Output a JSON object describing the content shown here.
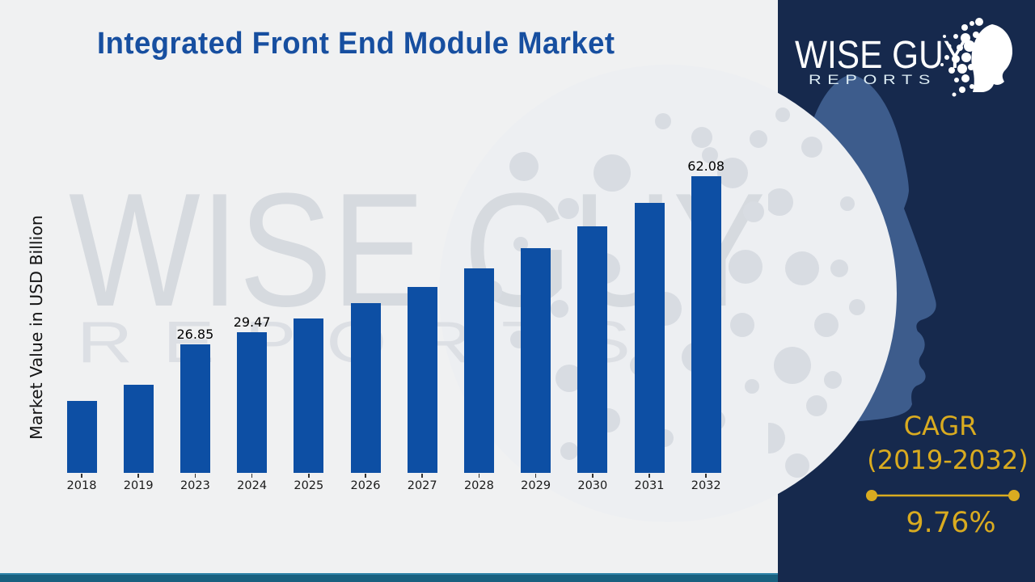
{
  "title": "Integrated Front End Module Market",
  "watermark": {
    "line1": "WISE GUY",
    "line2": "REPORTS"
  },
  "logo": {
    "line1": "WISE GUY",
    "line2": "REPORTS"
  },
  "cagr": {
    "heading": "CAGR",
    "range": "(2019-2032)",
    "value": "9.76%"
  },
  "chart_data": {
    "type": "bar",
    "title": "Integrated Front End Module Market",
    "xlabel": "",
    "ylabel": "Market Value in USD Billion",
    "categories": [
      "2018",
      "2019",
      "2023",
      "2024",
      "2025",
      "2026",
      "2027",
      "2028",
      "2029",
      "2030",
      "2031",
      "2032"
    ],
    "values": [
      15.1,
      18.5,
      26.85,
      29.47,
      32.35,
      35.51,
      38.97,
      42.78,
      46.95,
      51.54,
      56.57,
      62.08
    ],
    "bar_labels": {
      "2023": "26.85",
      "2024": "29.47",
      "2032": "62.08"
    },
    "ylim": [
      0,
      65
    ],
    "grid": false,
    "legend": false
  },
  "colors": {
    "background": "#f0f1f2",
    "bar": "#0d4fa4",
    "title_text": "#174fa0",
    "navy_panel": "#16294d",
    "face_profile": "#3d5c8c",
    "light_circle": "#edeff2",
    "watermark_gray": "#d9dce2",
    "gold_accent": "#d9ab20",
    "teal_strip": "#18607f"
  }
}
